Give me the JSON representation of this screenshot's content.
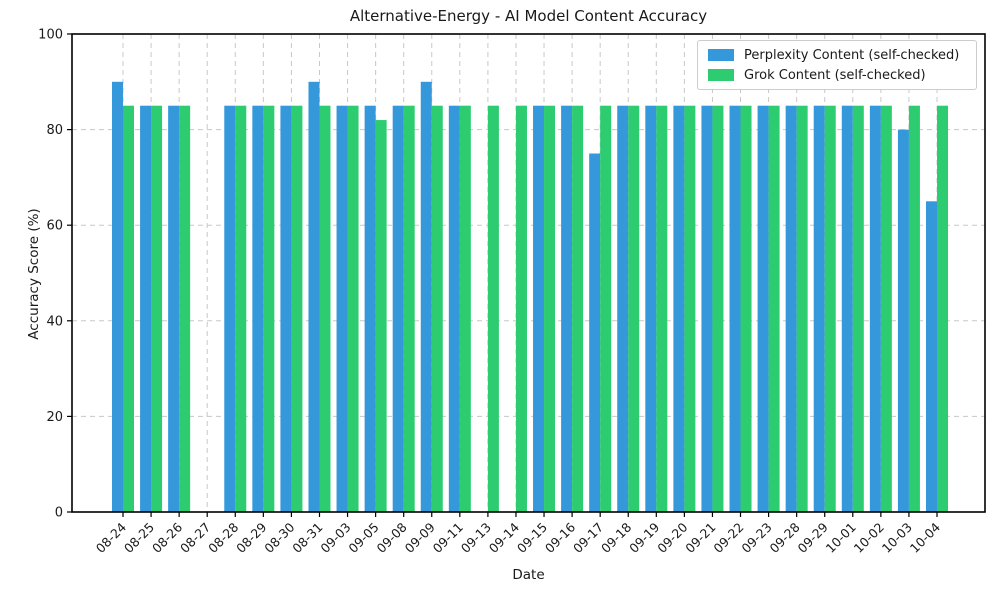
{
  "title": "Alternative-Energy - AI Model Content Accuracy",
  "chart_data": {
    "type": "bar",
    "title": "Alternative-Energy - AI Model Content Accuracy",
    "xlabel": "Date",
    "ylabel": "Accuracy Score (%)",
    "ylim": [
      0,
      100
    ],
    "yticks": [
      0,
      20,
      40,
      60,
      80,
      100
    ],
    "grid": true,
    "grid_style": "dashed",
    "grid_color": "#c8c8c8",
    "legend_position": "upper right",
    "background_color": "#ffffff",
    "categories": [
      "08-24",
      "08-25",
      "08-26",
      "08-27",
      "08-28",
      "08-29",
      "08-30",
      "08-31",
      "09-03",
      "09-05",
      "09-08",
      "09-09",
      "09-11",
      "09-13",
      "09-14",
      "09-15",
      "09-16",
      "09-17",
      "09-18",
      "09-19",
      "09-20",
      "09-21",
      "09-22",
      "09-23",
      "09-28",
      "09-29",
      "10-01",
      "10-02",
      "10-03",
      "10-04"
    ],
    "series": [
      {
        "name": "Perplexity Content (self-checked)",
        "color": "#3498db",
        "values": [
          90,
          85,
          85,
          null,
          85,
          85,
          85,
          90,
          85,
          85,
          85,
          90,
          85,
          null,
          null,
          85,
          85,
          75,
          85,
          85,
          85,
          85,
          85,
          85,
          85,
          85,
          85,
          85,
          80,
          65
        ]
      },
      {
        "name": "Grok Content (self-checked)",
        "color": "#2ecc71",
        "values": [
          85,
          85,
          85,
          null,
          85,
          85,
          85,
          85,
          85,
          82,
          85,
          85,
          85,
          85,
          85,
          85,
          85,
          85,
          85,
          85,
          85,
          85,
          85,
          85,
          85,
          85,
          85,
          85,
          85,
          85
        ]
      }
    ]
  }
}
